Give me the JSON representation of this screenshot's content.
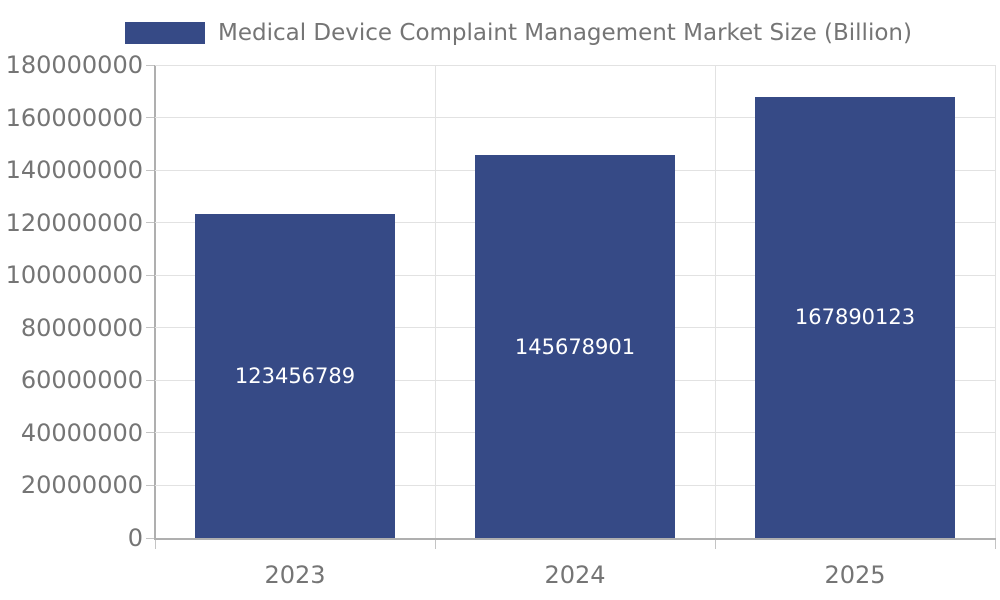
{
  "chart_data": {
    "type": "bar",
    "title": "Medical Device Complaint Management Market Size (Billion)",
    "categories": [
      "2023",
      "2024",
      "2025"
    ],
    "values": [
      123456789,
      145678901,
      167890123
    ],
    "series": [
      {
        "name": "Medical Device Complaint Management Market Size (Billion)",
        "values": [
          123456789,
          145678901,
          167890123
        ]
      }
    ],
    "xlabel": "",
    "ylabel": "",
    "ylim": [
      0,
      180000000
    ],
    "ytick_step": 20000000,
    "ytick_labels": [
      "0",
      "20000000",
      "40000000",
      "60000000",
      "80000000",
      "100000000",
      "120000000",
      "140000000",
      "160000000",
      "180000000"
    ],
    "grid": true,
    "legend_position": "top-left",
    "data_labels_visible": true,
    "colors": {
      "bar": "#364A86",
      "bar_label": "#FFFFFF",
      "axis_text": "#757575",
      "title_text": "#757575",
      "axis_line": "#AFAFAF",
      "gridline": "#E2E2E2",
      "tick": "#C4C4C4",
      "background": "#FFFFFF"
    }
  }
}
